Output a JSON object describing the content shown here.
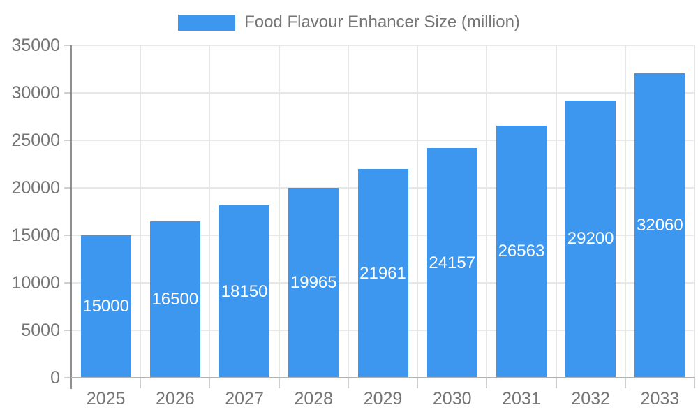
{
  "chart_data": {
    "type": "bar",
    "title": "Food Flavour Enhancer Size (million)",
    "legend": [
      "Food Flavour Enhancer Size (million)"
    ],
    "legend_position": "top-center",
    "categories": [
      "2025",
      "2026",
      "2027",
      "2028",
      "2029",
      "2030",
      "2031",
      "2032",
      "2033"
    ],
    "series": [
      {
        "name": "Food Flavour Enhancer Size (million)",
        "values": [
          15000,
          16500,
          18150,
          19965,
          21961,
          24157,
          26563,
          29200,
          32060
        ]
      }
    ],
    "bar_value_labels": [
      "15000",
      "16500",
      "18150",
      "19965",
      "21961",
      "24157",
      "26563",
      "29200",
      "32060"
    ],
    "bar_label_style": "white, inside bar, vertically centered",
    "xlabel": "",
    "ylabel": "",
    "ylim": [
      0,
      35000
    ],
    "ytick_step": 5000,
    "yticks": [
      0,
      5000,
      10000,
      15000,
      20000,
      25000,
      30000,
      35000
    ],
    "grid": true,
    "colors": {
      "bar": "#3d97ee",
      "grid": "#e7e7e7",
      "axis_y": "#8f8f8f",
      "axis_x": "#b3b3b3",
      "tick": "#cfcfcf",
      "text": "#757575",
      "bar_label": "#ffffff",
      "background": "#ffffff"
    }
  }
}
